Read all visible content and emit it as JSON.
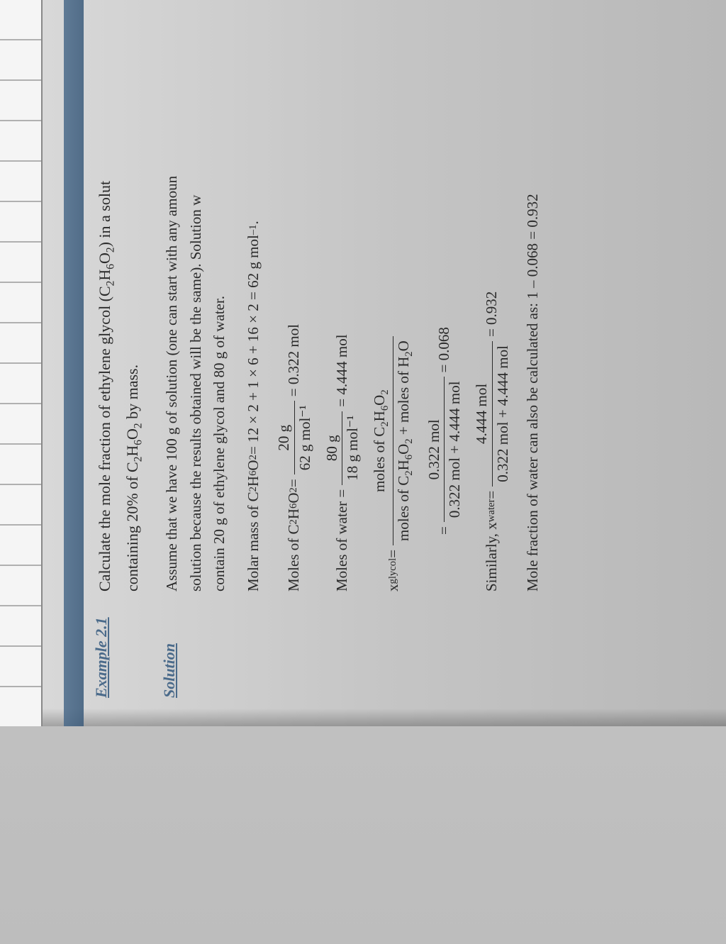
{
  "example_label": "Example 2.1",
  "solution_label": "Solution",
  "problem": {
    "line1_a": "Calculate the mole fraction of ethylene glycol (C",
    "line1_b": ") in a solut",
    "line2_a": "containing 20% of C",
    "line2_b": " by mass."
  },
  "solution": {
    "p1_a": "Assume that we have 100 g of solution (one can start with any amoun",
    "p1_b": "solution because the results obtained will be the same). Solution w",
    "p1_c": "contain 20 g of ethylene glycol and 80 g of water.",
    "molar_a": "Molar mass of C",
    "molar_b": " = 12 × 2 + 1 × 6 + 16 × 2 = 62 g mol",
    "moles_glycol_a": "Moles of C",
    "moles_glycol_eq": " = ",
    "moles_glycol_num": "20 g",
    "moles_glycol_den": "62 g mol⁻¹",
    "moles_glycol_res": " = 0.322 mol",
    "moles_water_a": "Moles of water = ",
    "moles_water_num": "80 g",
    "moles_water_den": "18 g mol⁻¹",
    "moles_water_res": " = 4.444 mol",
    "x_glycol_lhs": "x",
    "x_glycol_sub": "glycol",
    "x_eq": " = ",
    "x_glycol_num_a": "moles of C",
    "x_glycol_den_a": "moles of C",
    "x_glycol_den_b": " + moles of H",
    "x_glycol_den_c": "O",
    "x_glycol2_num": "0.322 mol",
    "x_glycol2_den": "0.322 mol + 4.444 mol",
    "x_glycol2_res": " = 0.068",
    "x_water_a": "Similarly, x",
    "x_water_sub": "water",
    "x_water_num": "4.444 mol",
    "x_water_den": "0.322 mol + 4.444 mol",
    "x_water_res": " = 0.932",
    "alt": "Mole fraction of water can also be calculated as: 1 – 0.068 = 0.932"
  },
  "formula": {
    "c2h6o2_sub1": "2",
    "c2h6o2_sub2": "6",
    "c2h6o2_sub3": "2",
    "h2o_sub": "2",
    "neg1": "–1"
  },
  "colors": {
    "label": "#4a6a8a",
    "text": "#2a2a2a",
    "bar": "#3a5a7a"
  }
}
